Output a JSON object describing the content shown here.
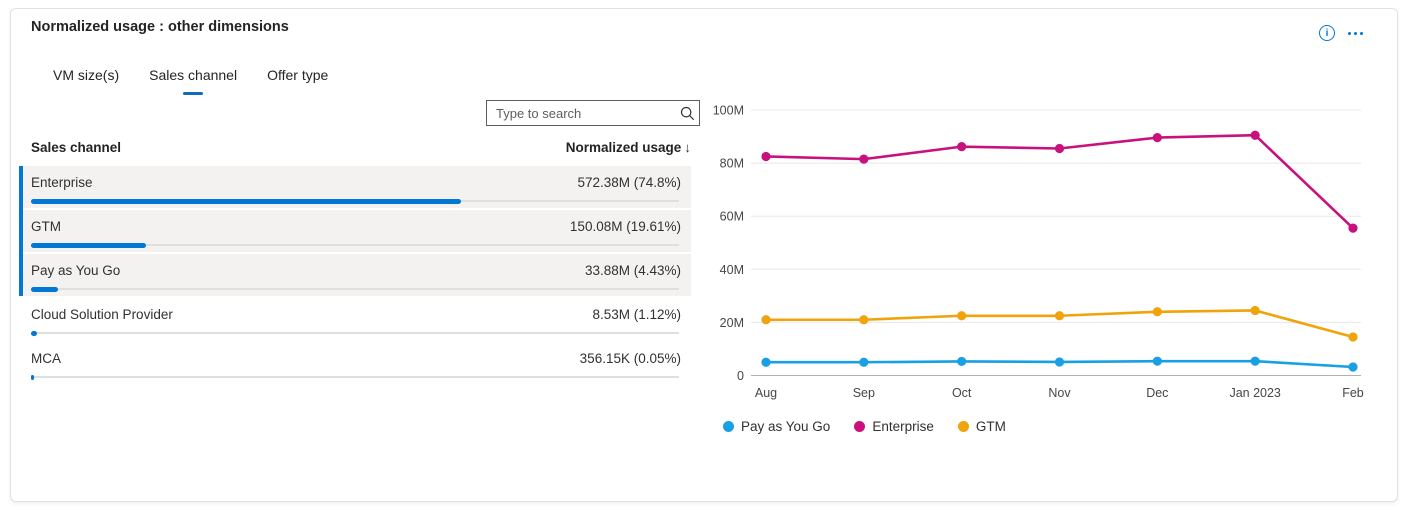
{
  "card": {
    "title": "Normalized usage : other dimensions",
    "accent_color": "#0078d4"
  },
  "icons": {
    "info": "i",
    "more": "⋯",
    "search": "magnifier",
    "sort_desc": "↓"
  },
  "tabs": [
    {
      "label": "VM size(s)",
      "selected": false
    },
    {
      "label": "Sales channel",
      "selected": true
    },
    {
      "label": "Offer type",
      "selected": false
    }
  ],
  "search": {
    "placeholder": "Type to search"
  },
  "table": {
    "column_left": "Sales channel",
    "column_right": "Normalized usage",
    "sort_icon": "↓",
    "rows": [
      {
        "label": "Enterprise",
        "value": "572.38M (74.8%)",
        "bar_pct": 65.2,
        "selected": true
      },
      {
        "label": "GTM",
        "value": "150.08M (19.61%)",
        "bar_pct": 17.4,
        "selected": true
      },
      {
        "label": "Pay as You Go",
        "value": "33.88M (4.43%)",
        "bar_pct": 4.1,
        "selected": true
      },
      {
        "label": "Cloud Solution Provider",
        "value": "8.53M (1.12%)",
        "bar_pct": 0.9,
        "selected": false
      },
      {
        "label": "MCA",
        "value": "356.15K (0.05%)",
        "bar_pct": 0.5,
        "selected": false
      }
    ]
  },
  "chart_data": {
    "type": "line",
    "x": [
      "Aug",
      "Sep",
      "Oct",
      "Nov",
      "Dec",
      "Jan 2023",
      "Feb"
    ],
    "series": [
      {
        "name": "Pay as You Go",
        "color": "#199fe3",
        "values": [
          5,
          5,
          5.3,
          5.1,
          5.4,
          5.4,
          3.2
        ]
      },
      {
        "name": "Enterprise",
        "color": "#c9117e",
        "values": [
          82.5,
          81.5,
          86.2,
          85.5,
          89.6,
          90.5,
          55.5
        ]
      },
      {
        "name": "GTM",
        "color": "#f0a30a",
        "values": [
          21,
          21,
          22.5,
          22.5,
          24,
          24.5,
          14.5
        ]
      }
    ],
    "ylim": [
      0,
      100
    ],
    "yticks": [
      {
        "value": 0,
        "label": "0"
      },
      {
        "value": 20,
        "label": "20M"
      },
      {
        "value": 40,
        "label": "40M"
      },
      {
        "value": 60,
        "label": "60M"
      },
      {
        "value": 80,
        "label": "80M"
      },
      {
        "value": 100,
        "label": "100M"
      }
    ],
    "grid": true,
    "legend_position": "bottom"
  }
}
